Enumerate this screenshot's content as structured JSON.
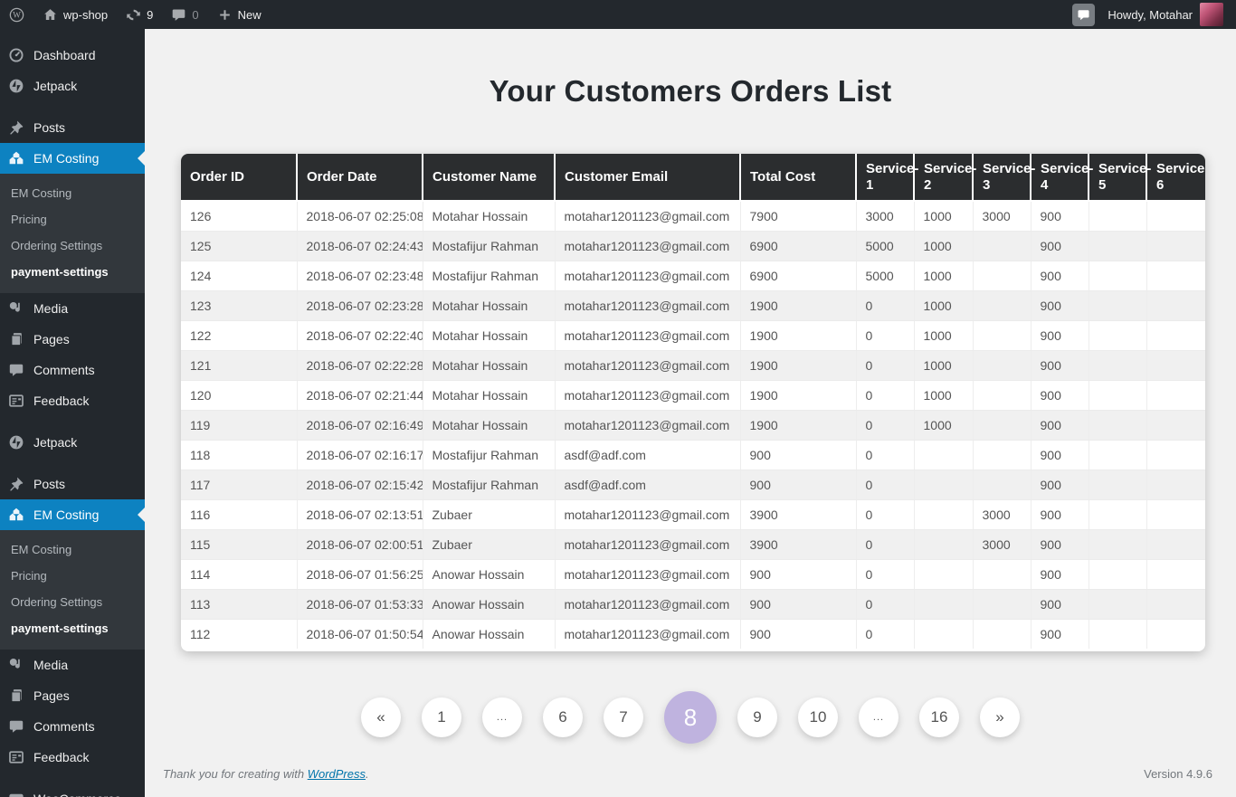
{
  "colors": {
    "admin_bar_bg": "#23282d",
    "submenu_bg": "#32373c",
    "active_menu_bg": "#0d82c1",
    "content_bg": "#f1f1f1",
    "table_header_bg": "#2b2d2f",
    "row_alt_bg": "#f0f0f0",
    "pagination_active_bg": "#bfb3df",
    "link_color": "#0073aa"
  },
  "admin_bar": {
    "left_items": [
      {
        "name": "wordpress-logo",
        "icon": "wordpress-logo",
        "label": ""
      },
      {
        "name": "site-name",
        "icon": "home",
        "label": "wp-shop"
      },
      {
        "name": "updates",
        "icon": "update",
        "label": "9"
      },
      {
        "name": "comments",
        "icon": "comment",
        "label": "0",
        "muted": true
      },
      {
        "name": "new-content",
        "icon": "plus",
        "label": "New"
      }
    ],
    "right": {
      "icon": "comment",
      "howdy": "Howdy, Motahar"
    }
  },
  "sidebar": {
    "items": [
      {
        "type": "top",
        "label": "Dashboard",
        "icon": "dashboard"
      },
      {
        "type": "top",
        "label": "Jetpack",
        "icon": "jetpack"
      },
      {
        "type": "spacer"
      },
      {
        "type": "top",
        "label": "Posts",
        "icon": "pin"
      },
      {
        "type": "top",
        "label": "EM Costing",
        "icon": "em-costing",
        "active": true
      },
      {
        "type": "sub",
        "label": "EM Costing"
      },
      {
        "type": "sub",
        "label": "Pricing"
      },
      {
        "type": "sub",
        "label": "Ordering Settings"
      },
      {
        "type": "sub",
        "label": "payment-settings",
        "current": true
      },
      {
        "type": "top",
        "label": "Media",
        "icon": "media"
      },
      {
        "type": "top",
        "label": "Pages",
        "icon": "pages"
      },
      {
        "type": "top",
        "label": "Comments",
        "icon": "comment"
      },
      {
        "type": "top",
        "label": "Feedback",
        "icon": "feedback"
      },
      {
        "type": "spacer"
      },
      {
        "type": "top",
        "label": "Jetpack",
        "icon": "jetpack"
      },
      {
        "type": "spacer"
      },
      {
        "type": "top",
        "label": "Posts",
        "icon": "pin"
      },
      {
        "type": "top",
        "label": "EM Costing",
        "icon": "em-costing",
        "active": true
      },
      {
        "type": "sub",
        "label": "EM Costing"
      },
      {
        "type": "sub",
        "label": "Pricing"
      },
      {
        "type": "sub",
        "label": "Ordering Settings"
      },
      {
        "type": "sub",
        "label": "payment-settings",
        "current": true
      },
      {
        "type": "top",
        "label": "Media",
        "icon": "media"
      },
      {
        "type": "top",
        "label": "Pages",
        "icon": "pages"
      },
      {
        "type": "top",
        "label": "Comments",
        "icon": "comment"
      },
      {
        "type": "top",
        "label": "Feedback",
        "icon": "feedback"
      },
      {
        "type": "spacer"
      },
      {
        "type": "top",
        "label": "WooCommerce",
        "icon": "woocommerce"
      }
    ]
  },
  "main": {
    "title": "Your Customers Orders List",
    "table": {
      "columns": [
        "Order ID",
        "Order Date",
        "Customer Name",
        "Customer Email",
        "Total Cost",
        "Service-1",
        "Service-2",
        "Service-3",
        "Service-4",
        "Service-5",
        "Service-6"
      ],
      "rows": [
        [
          "126",
          "2018-06-07 02:25:08",
          "Motahar Hossain",
          "motahar1201123@gmail.com",
          "7900",
          "3000",
          "1000",
          "3000",
          "900",
          "",
          ""
        ],
        [
          "125",
          "2018-06-07 02:24:43",
          "Mostafijur Rahman",
          "motahar1201123@gmail.com",
          "6900",
          "5000",
          "1000",
          "",
          "900",
          "",
          ""
        ],
        [
          "124",
          "2018-06-07 02:23:48",
          "Mostafijur Rahman",
          "motahar1201123@gmail.com",
          "6900",
          "5000",
          "1000",
          "",
          "900",
          "",
          ""
        ],
        [
          "123",
          "2018-06-07 02:23:28",
          "Motahar Hossain",
          "motahar1201123@gmail.com",
          "1900",
          "0",
          "1000",
          "",
          "900",
          "",
          ""
        ],
        [
          "122",
          "2018-06-07 02:22:40",
          "Motahar Hossain",
          "motahar1201123@gmail.com",
          "1900",
          "0",
          "1000",
          "",
          "900",
          "",
          ""
        ],
        [
          "121",
          "2018-06-07 02:22:28",
          "Motahar Hossain",
          "motahar1201123@gmail.com",
          "1900",
          "0",
          "1000",
          "",
          "900",
          "",
          ""
        ],
        [
          "120",
          "2018-06-07 02:21:44",
          "Motahar Hossain",
          "motahar1201123@gmail.com",
          "1900",
          "0",
          "1000",
          "",
          "900",
          "",
          ""
        ],
        [
          "119",
          "2018-06-07 02:16:49",
          "Motahar Hossain",
          "motahar1201123@gmail.com",
          "1900",
          "0",
          "1000",
          "",
          "900",
          "",
          ""
        ],
        [
          "118",
          "2018-06-07 02:16:17",
          "Mostafijur Rahman",
          "asdf@adf.com",
          "900",
          "0",
          "",
          "",
          "900",
          "",
          ""
        ],
        [
          "117",
          "2018-06-07 02:15:42",
          "Mostafijur Rahman",
          "asdf@adf.com",
          "900",
          "0",
          "",
          "",
          "900",
          "",
          ""
        ],
        [
          "116",
          "2018-06-07 02:13:51",
          "Zubaer",
          "motahar1201123@gmail.com",
          "3900",
          "0",
          "",
          "3000",
          "900",
          "",
          ""
        ],
        [
          "115",
          "2018-06-07 02:00:51",
          "Zubaer",
          "motahar1201123@gmail.com",
          "3900",
          "0",
          "",
          "3000",
          "900",
          "",
          ""
        ],
        [
          "114",
          "2018-06-07 01:56:25",
          "Anowar Hossain",
          "motahar1201123@gmail.com",
          "900",
          "0",
          "",
          "",
          "900",
          "",
          ""
        ],
        [
          "113",
          "2018-06-07 01:53:33",
          "Anowar Hossain",
          "motahar1201123@gmail.com",
          "900",
          "0",
          "",
          "",
          "900",
          "",
          ""
        ],
        [
          "112",
          "2018-06-07 01:50:54",
          "Anowar Hossain",
          "motahar1201123@gmail.com",
          "900",
          "0",
          "",
          "",
          "900",
          "",
          ""
        ]
      ]
    },
    "pagination": {
      "buttons": [
        "«",
        "1",
        "...",
        "6",
        "7",
        "8",
        "9",
        "10",
        "...",
        "16",
        "»"
      ],
      "active_index": 5
    }
  },
  "footer": {
    "thanks_prefix": "Thank you for creating with ",
    "link_text": "WordPress",
    "suffix": ".",
    "version": "Version 4.9.6"
  }
}
